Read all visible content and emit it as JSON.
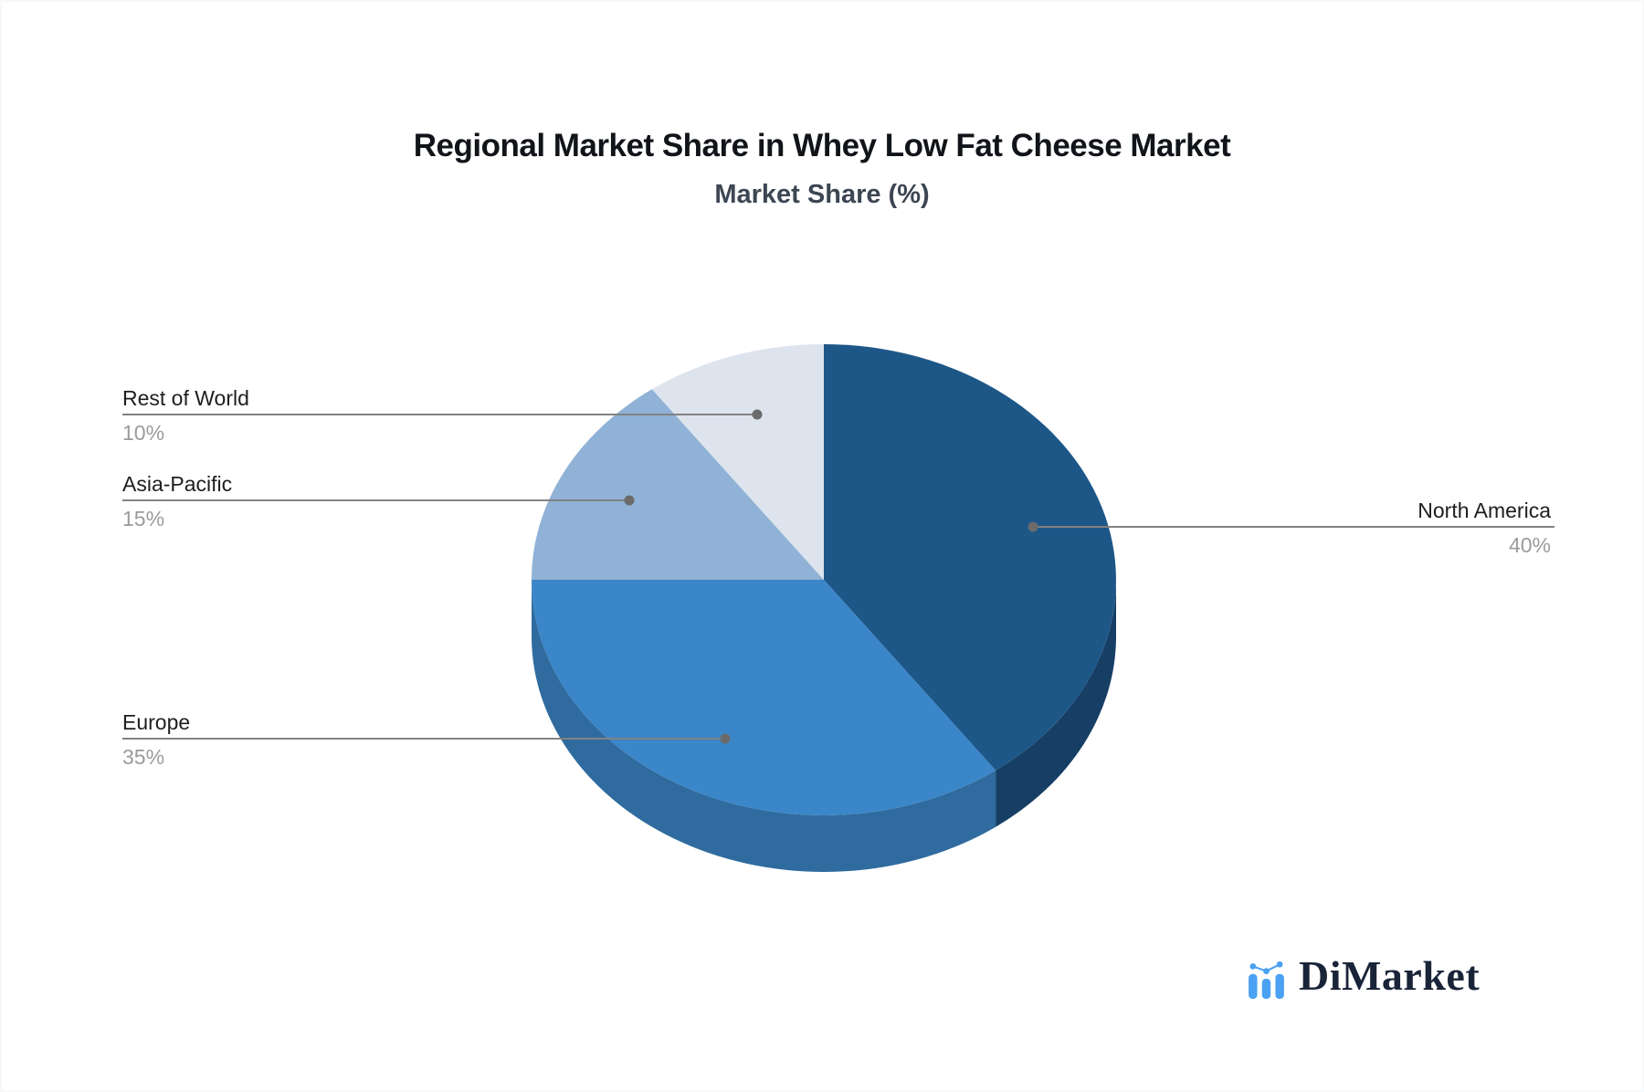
{
  "title": "Regional Market Share in Whey Low Fat Cheese Market",
  "subtitle": "Market Share (%)",
  "brand": {
    "name": "DiMarket"
  },
  "chart_data": {
    "type": "pie",
    "title": "Regional Market Share in Whey Low Fat Cheese Market",
    "subtitle": "Market Share (%)",
    "style": "3d-pie",
    "start_angle_deg": 0,
    "direction": "clockwise",
    "legend_position": "callout-labels",
    "slices": [
      {
        "label": "North America",
        "value": 40,
        "pct_label": "40%",
        "color": "#1D5788",
        "side_color": "#173F66"
      },
      {
        "label": "Europe",
        "value": 35,
        "pct_label": "35%",
        "color": "#3B86C8",
        "side_color": "#2F6B9E"
      },
      {
        "label": "Asia-Pacific",
        "value": 15,
        "pct_label": "15%",
        "color": "#8FB2D6",
        "side_color": "#7D9FC2"
      },
      {
        "label": "Rest of World",
        "value": 10,
        "pct_label": "10%",
        "color": "#DDE4EE",
        "side_color": "#C4CEDD"
      }
    ],
    "colors": {
      "leader_line": "#828282",
      "leader_dot": "#6B6B6B",
      "label_text": "#1E1E1E",
      "pct_text": "#9B9B9B"
    }
  }
}
